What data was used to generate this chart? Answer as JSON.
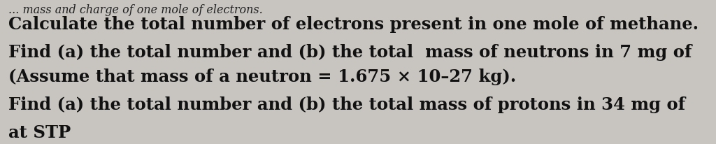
{
  "background_color": "#c8c5c0",
  "top_text": "... mass and charge of one mole of electrons.",
  "line1": "Calculate the total number of electrons present in one mole of methane.",
  "line2": "Find (a) the total number and (b) the total  mass of neutrons in 7 mg of",
  "line3": "(Assume that mass of a neutron = 1.675 × 10–27 kg).",
  "line4": "Find (a) the total number and (b) the total mass of protons in 34 mg of",
  "line5": "at STP",
  "font_size_top": 11.5,
  "font_size_main": 17.5,
  "text_color": "#111111",
  "top_text_color": "#222222"
}
